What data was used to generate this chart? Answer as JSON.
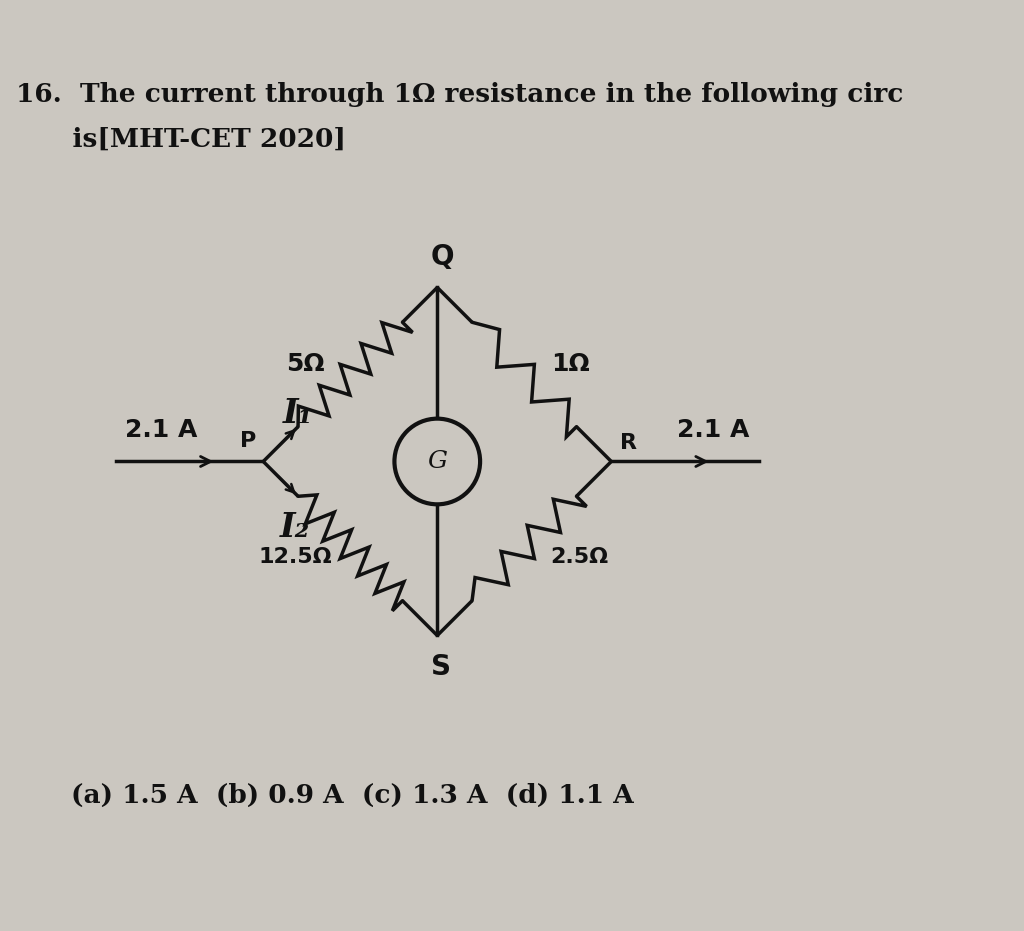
{
  "title_line1": "16.  The current through 1Ω resistance in the following circ",
  "title_line2": "    is[MHT-CET 2020]",
  "bg_color": "#cbc7c0",
  "circuit_color": "#111111",
  "label_Q": "Q",
  "label_P": "P",
  "label_R": "R",
  "label_S": "S",
  "label_5ohm": "5Ω",
  "label_1ohm": "1Ω",
  "label_125ohm": "12.5Ω",
  "label_25ohm": "2.5Ω",
  "label_G": "G",
  "label_21A_left": "2.1 A",
  "label_21A_right": "2.1 A",
  "answer_options": "(a) 1.5 A  (b) 0.9 A  (c) 1.3 A  (d) 1.1 A",
  "text_color": "#111111"
}
